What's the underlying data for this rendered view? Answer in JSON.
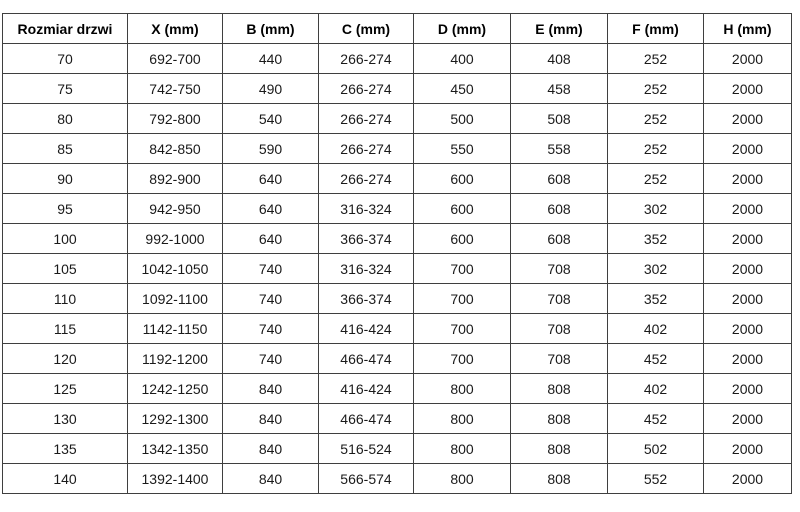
{
  "colors": {
    "background": "#ffffff",
    "border": "#3f3f3f",
    "header_text": "#000000",
    "cell_text": "#1a1a1a"
  },
  "chart_data": {
    "type": "table",
    "title": "",
    "columns": [
      "Rozmiar drzwi",
      "X (mm)",
      "B (mm)",
      "C (mm)",
      "D (mm)",
      "E (mm)",
      "F (mm)",
      "H (mm)"
    ],
    "rows": [
      [
        "70",
        "692-700",
        "440",
        "266-274",
        "400",
        "408",
        "252",
        "2000"
      ],
      [
        "75",
        "742-750",
        "490",
        "266-274",
        "450",
        "458",
        "252",
        "2000"
      ],
      [
        "80",
        "792-800",
        "540",
        "266-274",
        "500",
        "508",
        "252",
        "2000"
      ],
      [
        "85",
        "842-850",
        "590",
        "266-274",
        "550",
        "558",
        "252",
        "2000"
      ],
      [
        "90",
        "892-900",
        "640",
        "266-274",
        "600",
        "608",
        "252",
        "2000"
      ],
      [
        "95",
        "942-950",
        "640",
        "316-324",
        "600",
        "608",
        "302",
        "2000"
      ],
      [
        "100",
        "992-1000",
        "640",
        "366-374",
        "600",
        "608",
        "352",
        "2000"
      ],
      [
        "105",
        "1042-1050",
        "740",
        "316-324",
        "700",
        "708",
        "302",
        "2000"
      ],
      [
        "110",
        "1092-1100",
        "740",
        "366-374",
        "700",
        "708",
        "352",
        "2000"
      ],
      [
        "115",
        "1142-1150",
        "740",
        "416-424",
        "700",
        "708",
        "402",
        "2000"
      ],
      [
        "120",
        "1192-1200",
        "740",
        "466-474",
        "700",
        "708",
        "452",
        "2000"
      ],
      [
        "125",
        "1242-1250",
        "840",
        "416-424",
        "800",
        "808",
        "402",
        "2000"
      ],
      [
        "130",
        "1292-1300",
        "840",
        "466-474",
        "800",
        "808",
        "452",
        "2000"
      ],
      [
        "135",
        "1342-1350",
        "840",
        "516-524",
        "800",
        "808",
        "502",
        "2000"
      ],
      [
        "140",
        "1392-1400",
        "840",
        "566-574",
        "800",
        "808",
        "552",
        "2000"
      ]
    ]
  }
}
